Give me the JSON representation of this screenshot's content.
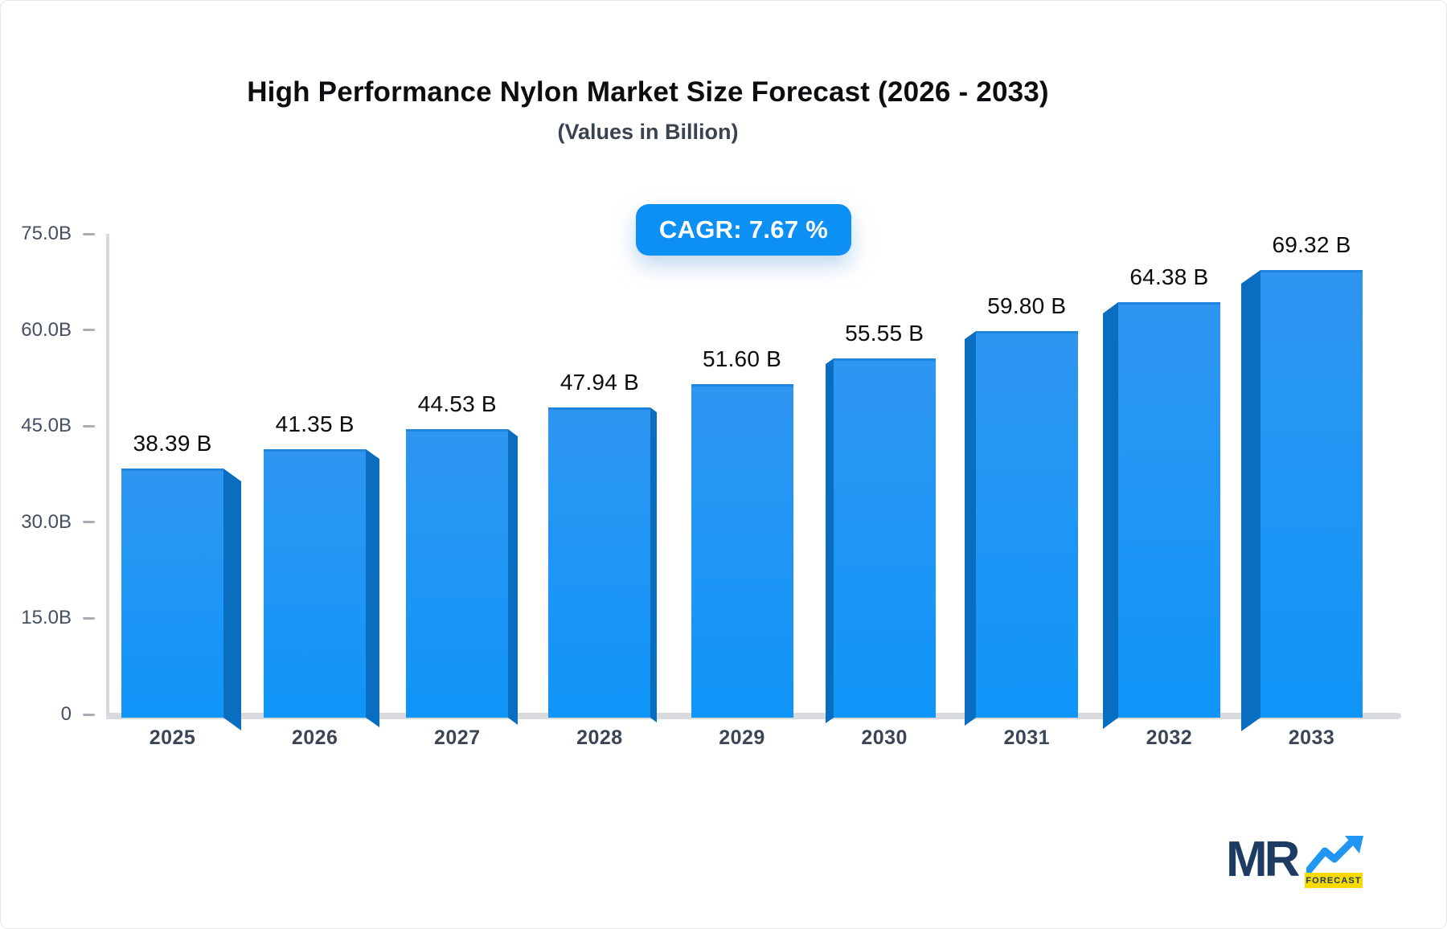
{
  "title": "High Performance Nylon Market Size Forecast (2026 - 2033)",
  "subtitle": "(Values in Billion)",
  "cagr_badge": "CAGR: 7.67 %",
  "chart_data": {
    "type": "bar",
    "title": "High Performance Nylon Market Size Forecast (2026 - 2033)",
    "subtitle": "(Values in Billion)",
    "xlabel": "",
    "ylabel": "",
    "unit": "Billion",
    "cagr_percent": 7.67,
    "categories": [
      "2025",
      "2026",
      "2027",
      "2028",
      "2029",
      "2030",
      "2031",
      "2032",
      "2033"
    ],
    "values": [
      38.39,
      41.35,
      44.53,
      47.94,
      51.6,
      55.55,
      59.8,
      64.38,
      69.32
    ],
    "value_labels": [
      "38.39 B",
      "41.35 B",
      "44.53 B",
      "47.94 B",
      "51.60 B",
      "55.55 B",
      "59.80 B",
      "64.38 B",
      "69.32 B"
    ],
    "ytick_labels": [
      "75.0B",
      "60.0B",
      "45.0B",
      "30.0B",
      "15.0B",
      "0"
    ],
    "ytick_values": [
      75,
      60,
      45,
      30,
      15,
      0
    ],
    "ylim": [
      0,
      75
    ],
    "grid": "off",
    "legend": "none",
    "bar_color_top": "#2e96f1",
    "bar_color_bottom": "#1095f9",
    "bar_side_color": "#0a6ec0",
    "bar_top_edge_color": "#1f85dd",
    "badge_color": "#0d90f3"
  },
  "logo": {
    "mr_text": "MR",
    "forecast_text": "FORECAST",
    "navy": "#1d3b63",
    "blue": "#2196f3",
    "yellow": "#f8d900"
  }
}
